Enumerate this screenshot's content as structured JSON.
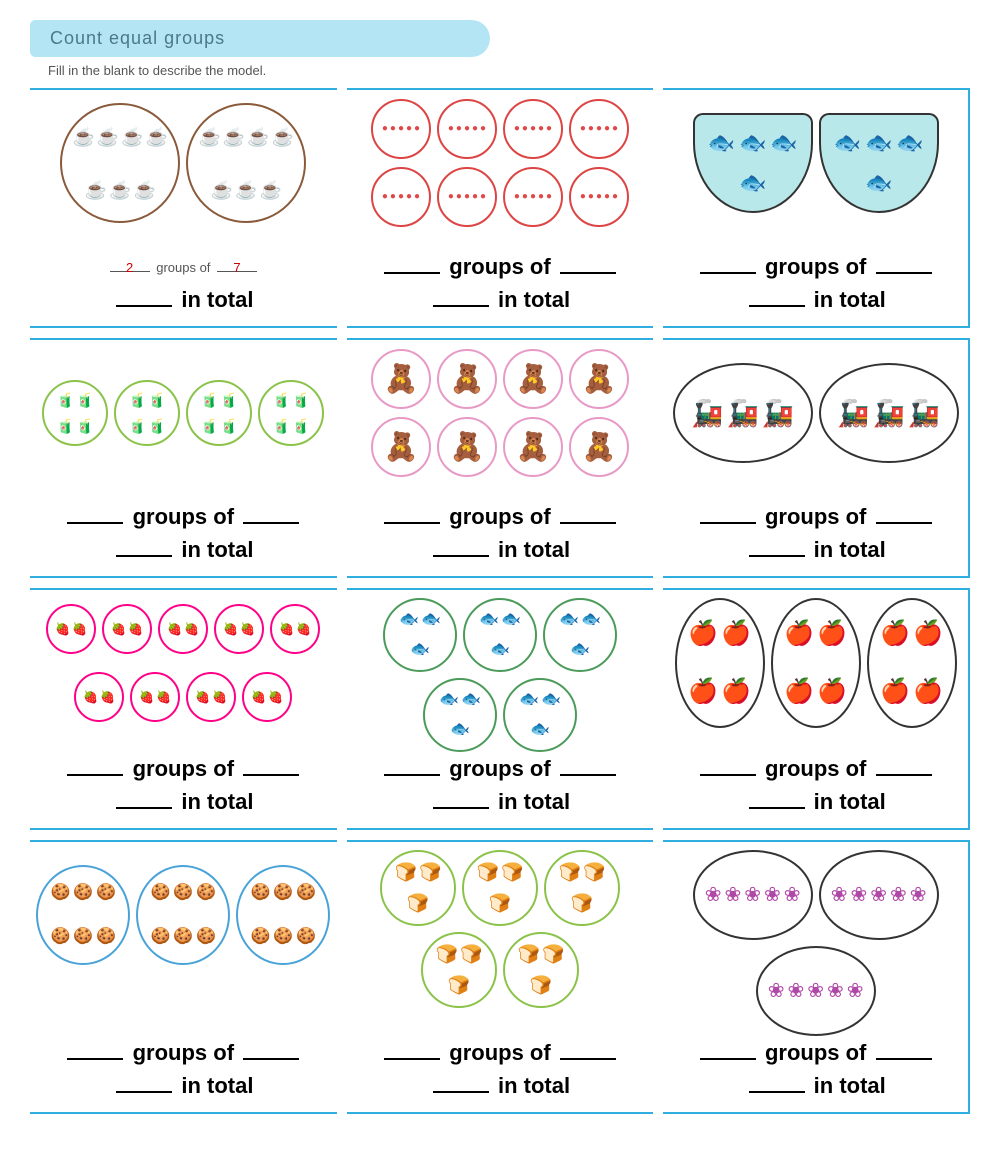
{
  "title": "Count equal groups",
  "instruction": "Fill in the blank to describe the model.",
  "labels": {
    "groups_of": "groups of",
    "in_total": "in total"
  },
  "colors": {
    "title_bg": "#b3e5f5",
    "title_text": "#4a7a8a",
    "border": "#2faee0",
    "example_answer": "#c00000"
  },
  "example": {
    "groups": "2",
    "per_group": "7"
  },
  "cells": [
    {
      "id": "teacups",
      "groups": 2,
      "per_group": 7,
      "shape": "circle",
      "circle_border": "#8a5a3a",
      "circle_bg": "#ffffff",
      "circle_size": 120,
      "item_emoji": "☕",
      "item_color": "#d9a98a",
      "item_size": 18,
      "has_example": true
    },
    {
      "id": "apples-small",
      "groups": 8,
      "per_group": 5,
      "shape": "circle",
      "circle_border": "#d44",
      "circle_bg": "#ffffff",
      "circle_size": 60,
      "item_emoji": "●",
      "item_color": "#e04848",
      "item_size": 10,
      "layout_cols": 4
    },
    {
      "id": "fishbowls",
      "groups": 2,
      "per_group": 4,
      "shape": "fishbowl",
      "item_emoji": "🐟",
      "item_color": "#f5a623",
      "item_size": 22
    },
    {
      "id": "juice",
      "groups": 4,
      "per_group": 4,
      "shape": "circle",
      "circle_border": "#8bc34a",
      "circle_bg": "#ffffff",
      "circle_size": 66,
      "item_emoji": "🧃",
      "item_color": "#e0c040",
      "item_size": 14,
      "layout_cols": 4
    },
    {
      "id": "bears",
      "groups": 8,
      "per_group": 1,
      "shape": "circle",
      "circle_border": "#e89ac7",
      "circle_bg": "#ffffff",
      "circle_size": 60,
      "item_emoji": "🧸",
      "item_color": "#d8b9d8",
      "item_size": 28,
      "layout_cols": 4
    },
    {
      "id": "trains",
      "groups": 2,
      "per_group": 3,
      "shape": "oval",
      "circle_border": "#333",
      "circle_bg": "#ffffff",
      "circle_w": 140,
      "circle_h": 100,
      "item_emoji": "🚂",
      "item_color": "#d22",
      "item_size": 26
    },
    {
      "id": "strawberries",
      "groups": 9,
      "per_group": 2,
      "shape": "circle",
      "circle_border": "#f08",
      "circle_bg": "#ffffff",
      "circle_size": 50,
      "item_emoji": "🍓",
      "item_color": "#e04860",
      "item_size": 12,
      "layout_cols": 5
    },
    {
      "id": "fish-green",
      "groups": 5,
      "per_group": 3,
      "shape": "circle",
      "circle_border": "#4a9a5a",
      "circle_bg": "#ffffff",
      "circle_size": 74,
      "item_emoji": "🐟",
      "item_color": "#5a9a6a",
      "item_size": 16,
      "layout_cols": 3
    },
    {
      "id": "red-apples",
      "groups": 3,
      "per_group": 4,
      "shape": "oval",
      "circle_border": "#333",
      "circle_bg": "#ffffff",
      "circle_w": 90,
      "circle_h": 130,
      "item_emoji": "🍎",
      "item_color": "#d22",
      "item_size": 24
    },
    {
      "id": "cookies",
      "groups": 3,
      "per_group": 6,
      "shape": "oval",
      "circle_border": "#4aa3d8",
      "circle_bg": "#ffffff",
      "circle_w": 94,
      "circle_h": 100,
      "item_emoji": "🍪",
      "item_color": "#c8955a",
      "item_size": 16
    },
    {
      "id": "bread",
      "groups": 5,
      "per_group": 3,
      "shape": "circle",
      "circle_border": "#8bc34a",
      "circle_bg": "#ffffff",
      "circle_size": 76,
      "item_emoji": "🍞",
      "item_color": "#d8b060",
      "item_size": 18,
      "layout_cols": 3
    },
    {
      "id": "turnips",
      "groups": 3,
      "per_group": 5,
      "shape": "oval",
      "circle_border": "#333",
      "circle_bg": "#ffffff",
      "circle_w": 120,
      "circle_h": 90,
      "item_emoji": "❀",
      "item_color": "#b048a8",
      "item_size": 20,
      "layout_tri": true
    }
  ]
}
